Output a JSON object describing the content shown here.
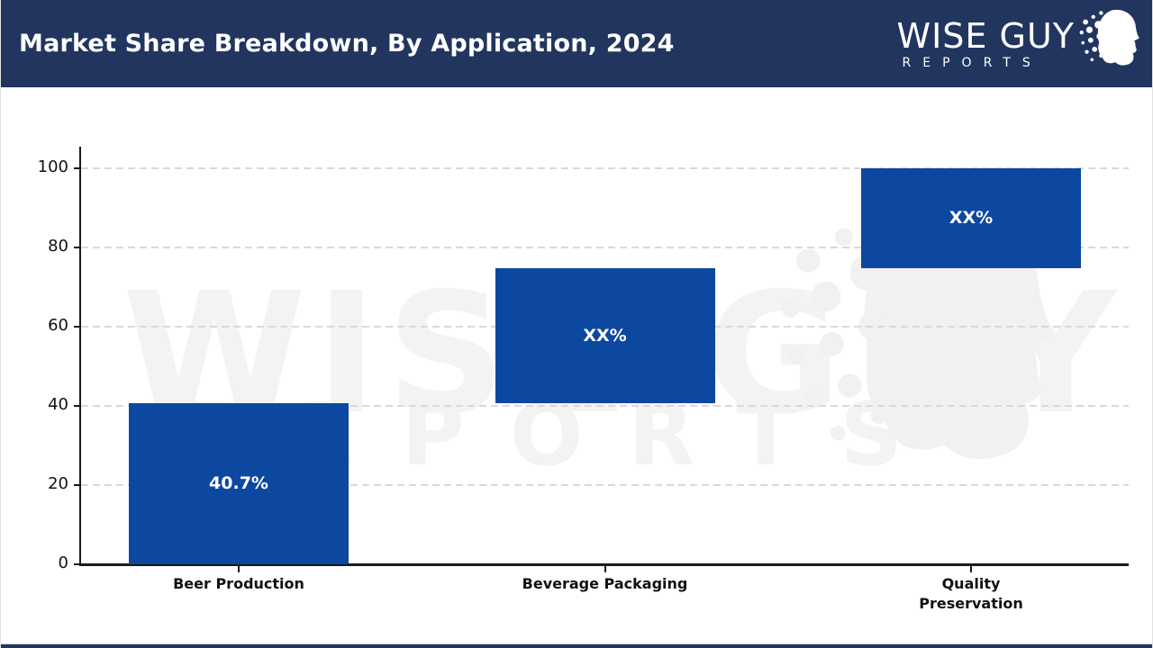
{
  "header": {
    "title": "Market Share Breakdown, By Application, 2024",
    "logo": {
      "line1": "WISE GUY",
      "line2": "REPORTS"
    },
    "background_color": "#21355e",
    "text_color": "#ffffff"
  },
  "watermark": {
    "line1": "WISE GUY",
    "line2": "REPORTS"
  },
  "chart_data": {
    "type": "bar",
    "subtype": "waterfall-breakdown",
    "title": "Market Share Breakdown, By Application, 2024",
    "categories": [
      "Beer Production",
      "Beverage Packaging",
      "Quality Preservation"
    ],
    "bars": [
      {
        "category": "Beer Production",
        "category_lines": [
          "Beer Production"
        ],
        "label": "40.7%",
        "start": 0,
        "end": 40.7
      },
      {
        "category": "Beverage Packaging",
        "category_lines": [
          "Beverage Packaging"
        ],
        "label": "XX%",
        "start": 40.7,
        "end": 74.8
      },
      {
        "category": "Quality Preservation",
        "category_lines": [
          "Quality",
          "Preservation"
        ],
        "label": "XX%",
        "start": 74.8,
        "end": 100
      }
    ],
    "yticks": [
      0,
      20,
      40,
      60,
      80,
      100
    ],
    "ylim": [
      0,
      105
    ],
    "xlabel": "",
    "ylabel": "",
    "grid": "horizontal-dashed",
    "gridline_color": "#d9d9d9",
    "bar_color": "#0c48a0",
    "label_color": "#ffffff",
    "axis_color": "#1a1a1a"
  },
  "footer": {
    "color": "#21355e"
  }
}
